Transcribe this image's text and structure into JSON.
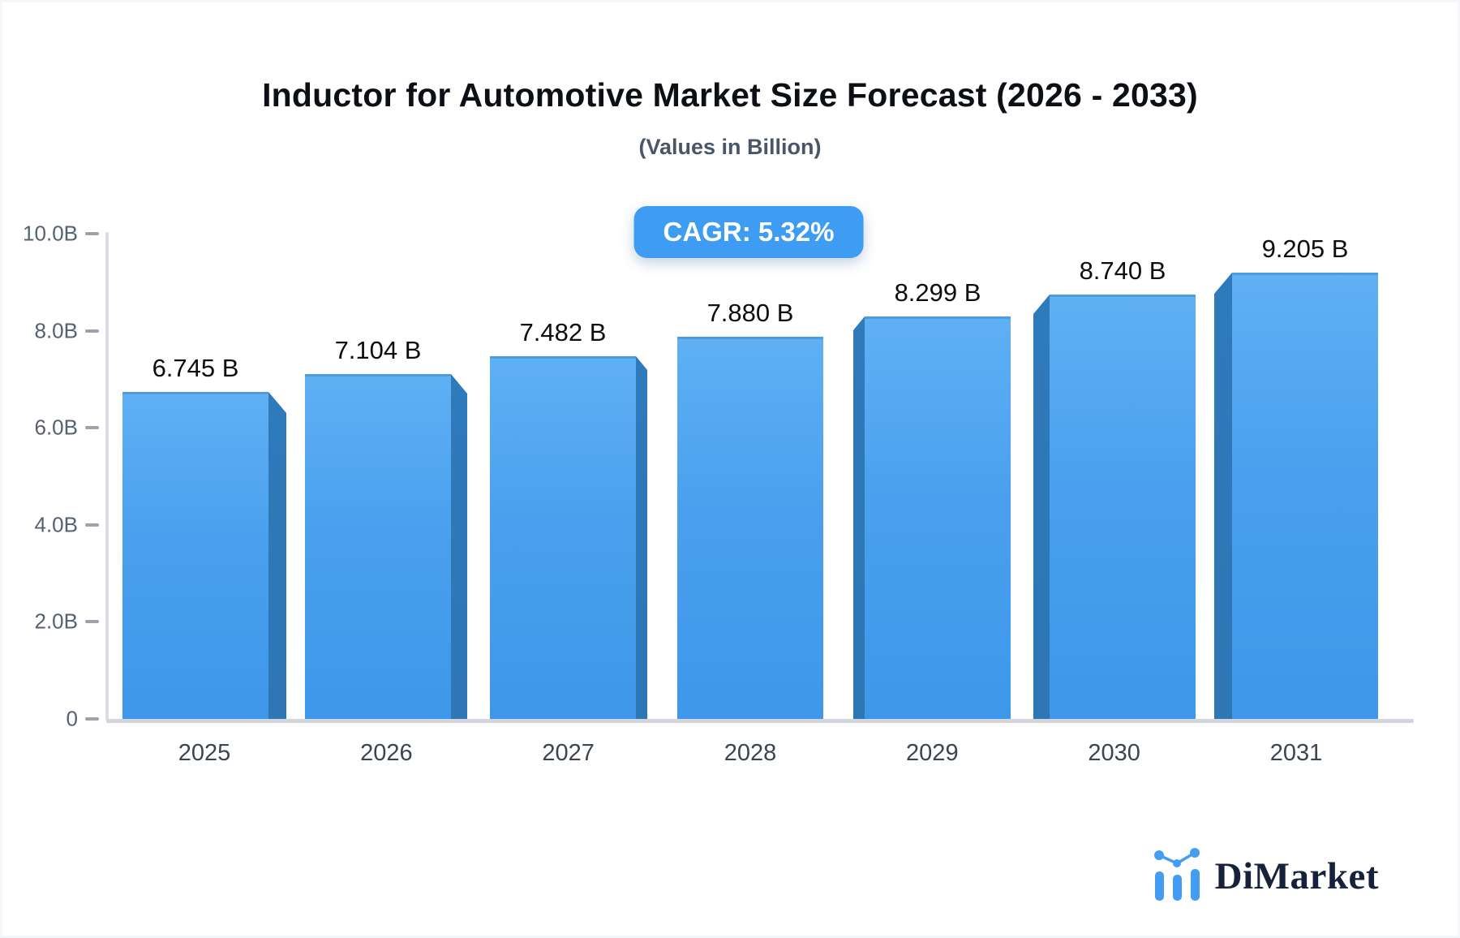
{
  "header": {
    "title": "Inductor for Automotive Market Size Forecast (2026 - 2033)",
    "subtitle": "(Values in Billion)",
    "cagr_label": "CAGR: 5.32%"
  },
  "chart_data": {
    "type": "bar",
    "title": "Inductor for Automotive Market Size Forecast (2026 - 2033)",
    "subtitle": "(Values in Billion)",
    "cagr": "5.32%",
    "categories": [
      "2025",
      "2026",
      "2027",
      "2028",
      "2029",
      "2030",
      "2031"
    ],
    "values": [
      6.745,
      7.104,
      7.482,
      7.88,
      8.299,
      8.74,
      9.205
    ],
    "value_labels": [
      "6.745 B",
      "7.104 B",
      "7.482 B",
      "7.880 B",
      "8.299 B",
      "8.740 B",
      "9.205 B"
    ],
    "xlabel": "",
    "ylabel": "",
    "ylim": [
      0,
      10
    ],
    "yticks": [
      {
        "label": "10.0B",
        "value": 10
      },
      {
        "label": "8.0B",
        "value": 8
      },
      {
        "label": "6.0B",
        "value": 6
      },
      {
        "label": "4.0B",
        "value": 4
      },
      {
        "label": "2.0B",
        "value": 2
      },
      {
        "label": "0",
        "value": 0
      }
    ],
    "grid": false,
    "legend": false,
    "bar_style": "3d-perspective",
    "colors": {
      "bar_face": "#4AA0EE",
      "bar_side": "#2E77B8",
      "badge_background": "#3E9DF2",
      "badge_text": "#FFFFFF",
      "axis_line": "#D6DAE0",
      "tick_text": "#556070"
    }
  },
  "branding": {
    "logo_text": "DiMarket",
    "logo_icon": "bar-line-chart-icon",
    "logo_icon_color": "#459DF3",
    "logo_text_color": "#16213A"
  }
}
